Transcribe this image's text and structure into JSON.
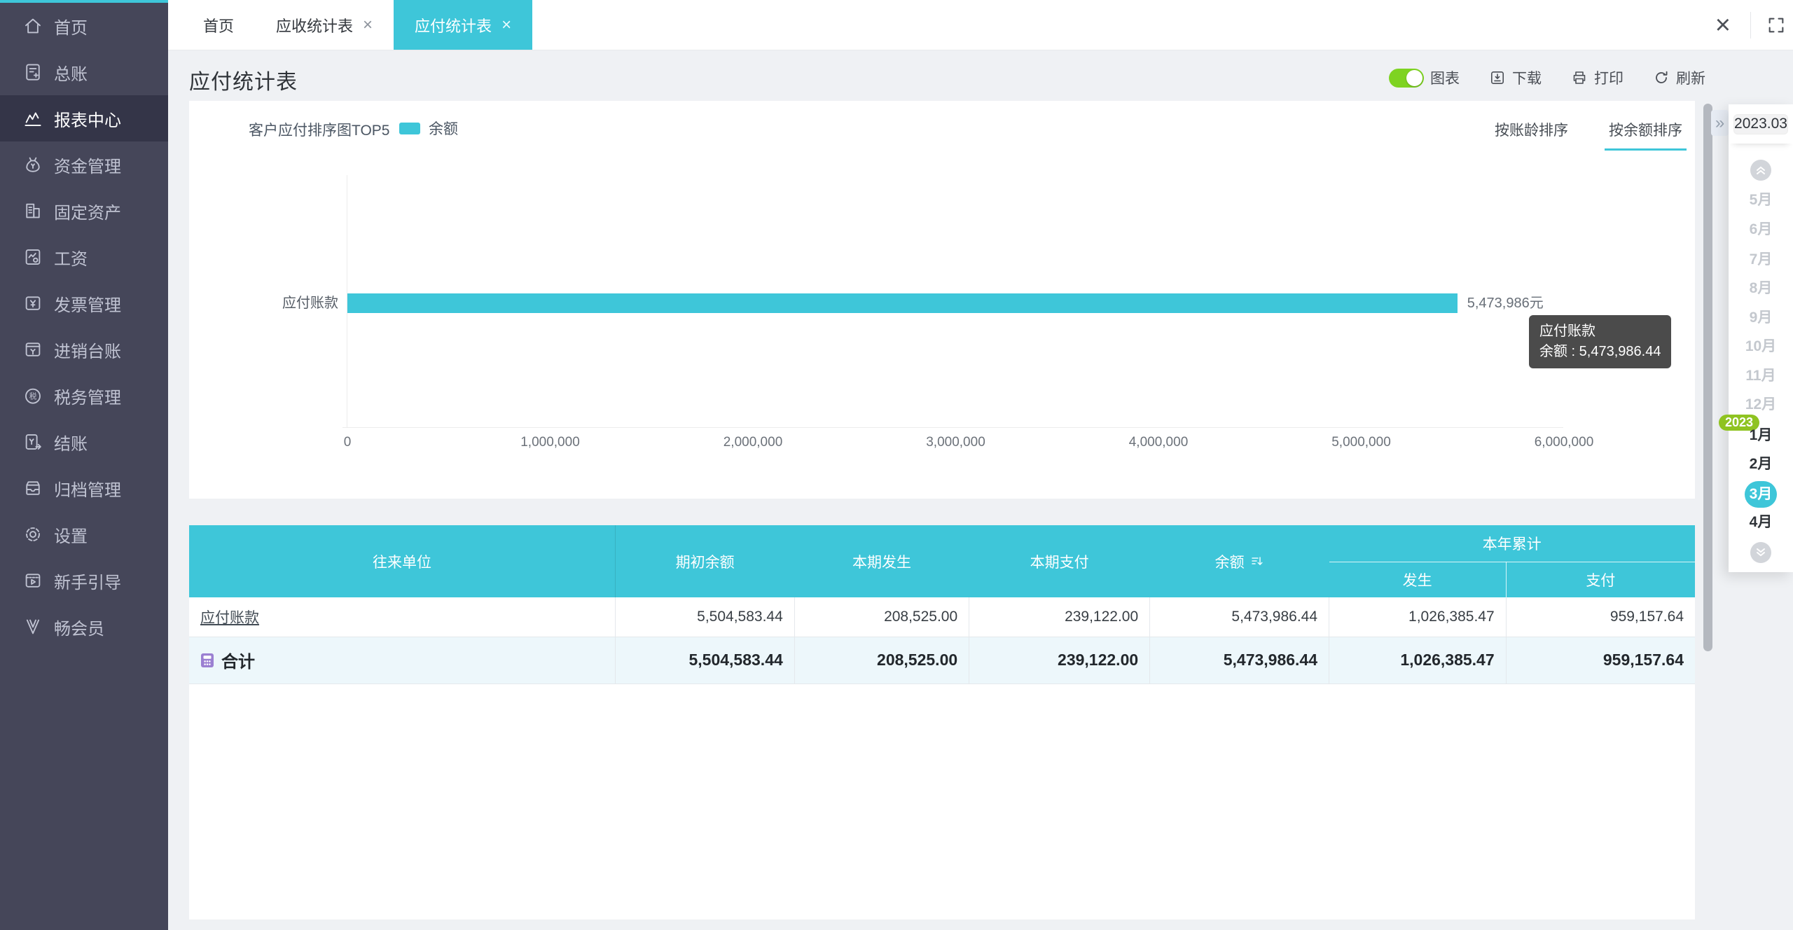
{
  "accent_color": "#3ec6d9",
  "toggle_color": "#7ed321",
  "badge_color": "#8fc321",
  "icons": {
    "close": "×",
    "collapse": "»"
  },
  "sidebar": {
    "items": [
      {
        "label": "首页",
        "icon": "home-icon"
      },
      {
        "label": "总账",
        "icon": "ledger-icon"
      },
      {
        "label": "报表中心",
        "icon": "report-center-icon",
        "active": true
      },
      {
        "label": "资金管理",
        "icon": "fund-icon"
      },
      {
        "label": "固定资产",
        "icon": "fixed-assets-icon"
      },
      {
        "label": "工资",
        "icon": "salary-icon"
      },
      {
        "label": "发票管理",
        "icon": "invoice-icon"
      },
      {
        "label": "进销台账",
        "icon": "purchase-sales-icon"
      },
      {
        "label": "税务管理",
        "icon": "tax-icon"
      },
      {
        "label": "结账",
        "icon": "closing-icon"
      },
      {
        "label": "归档管理",
        "icon": "archive-icon"
      },
      {
        "label": "设置",
        "icon": "settings-icon"
      },
      {
        "label": "新手引导",
        "icon": "guide-icon"
      },
      {
        "label": "畅会员",
        "icon": "member-icon"
      }
    ]
  },
  "tabs": [
    {
      "label": "首页",
      "closable": false
    },
    {
      "label": "应收统计表",
      "closable": true
    },
    {
      "label": "应付统计表",
      "closable": true,
      "active": true
    }
  ],
  "page": {
    "title": "应付统计表"
  },
  "toolbar": {
    "toggle_label": "图表",
    "toggle_on": true,
    "download_label": "下载",
    "print_label": "打印",
    "refresh_label": "刷新"
  },
  "chart": {
    "title": "客户应付排序图TOP5",
    "legend_label": "余额",
    "sort_options": [
      {
        "label": "按账龄排序",
        "active": false
      },
      {
        "label": "按余额排序",
        "active": true
      }
    ],
    "value_label": "5,473,986元",
    "tooltip": {
      "title": "应付账款",
      "text": "余额 : 5,473,986.44"
    }
  },
  "chart_data": {
    "type": "bar",
    "orientation": "horizontal",
    "title": "客户应付排序图TOP5",
    "categories": [
      "应付账款"
    ],
    "series": [
      {
        "name": "余额",
        "values": [
          5473986.44
        ]
      }
    ],
    "xlim": [
      0,
      6000000
    ],
    "xticks": [
      "0",
      "1,000,000",
      "2,000,000",
      "3,000,000",
      "4,000,000",
      "5,000,000",
      "6,000,000"
    ],
    "bar_color": "#3ec6d9",
    "grid": false,
    "legend_position": "top"
  },
  "period": {
    "current": "2023.03",
    "year_badge": "2023",
    "months": [
      {
        "label": "5月",
        "state": "muted"
      },
      {
        "label": "6月",
        "state": "muted"
      },
      {
        "label": "7月",
        "state": "muted"
      },
      {
        "label": "8月",
        "state": "muted"
      },
      {
        "label": "9月",
        "state": "muted"
      },
      {
        "label": "10月",
        "state": "muted"
      },
      {
        "label": "11月",
        "state": "muted"
      },
      {
        "label": "12月",
        "state": "muted"
      },
      {
        "label": "1月",
        "state": "normal"
      },
      {
        "label": "2月",
        "state": "normal"
      },
      {
        "label": "3月",
        "state": "selected"
      },
      {
        "label": "4月",
        "state": "normal"
      }
    ]
  },
  "table": {
    "headers": {
      "col1": "往来单位",
      "col2": "期初余额",
      "col3": "本期发生",
      "col4": "本期支付",
      "col5": "余额",
      "group": "本年累计",
      "col6": "发生",
      "col7": "支付"
    },
    "rows": [
      {
        "name": "应付账款",
        "values": [
          "5,504,583.44",
          "208,525.00",
          "239,122.00",
          "5,473,986.44",
          "1,026,385.47",
          "959,157.64"
        ]
      }
    ],
    "total": {
      "name": "合计",
      "values": [
        "5,504,583.44",
        "208,525.00",
        "239,122.00",
        "5,473,986.44",
        "1,026,385.47",
        "959,157.64"
      ]
    }
  }
}
